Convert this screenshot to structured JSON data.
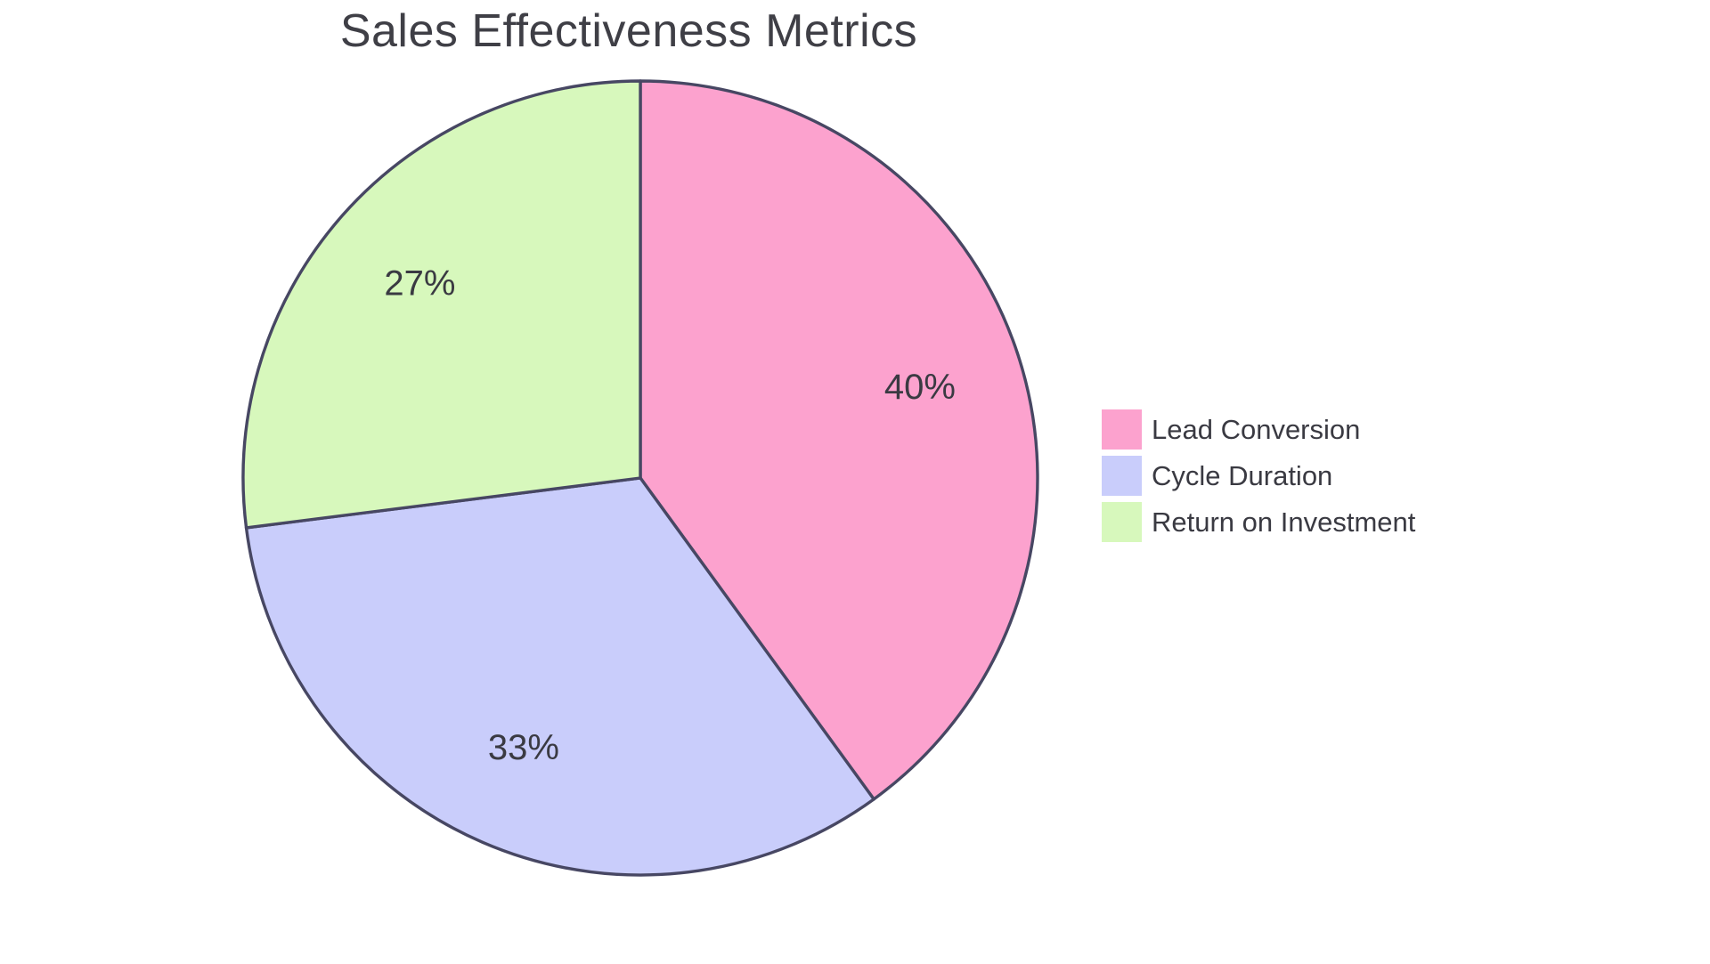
{
  "chart_data": {
    "type": "pie",
    "title": "Sales Effectiveness Metrics",
    "labels": [
      "Lead Conversion",
      "Cycle Duration",
      "Return on Investment"
    ],
    "values": [
      40,
      33,
      27
    ],
    "percent_labels": [
      "40%",
      "33%",
      "27%"
    ],
    "colors": [
      "#FCA2CE",
      "#C9CDFB",
      "#D7F8BC"
    ],
    "stroke_color": "#474763",
    "title_color": "#3F3F46",
    "label_color": "#3A3A42",
    "background_color": "#FFFFFF",
    "start_angle": "top",
    "direction": "clockwise",
    "legend_position": "right",
    "legend_items": [
      {
        "label": "Lead Conversion",
        "color": "#FCA2CE"
      },
      {
        "label": "Cycle Duration",
        "color": "#C9CDFB"
      },
      {
        "label": "Return on Investment",
        "color": "#D7F8BC"
      }
    ]
  }
}
